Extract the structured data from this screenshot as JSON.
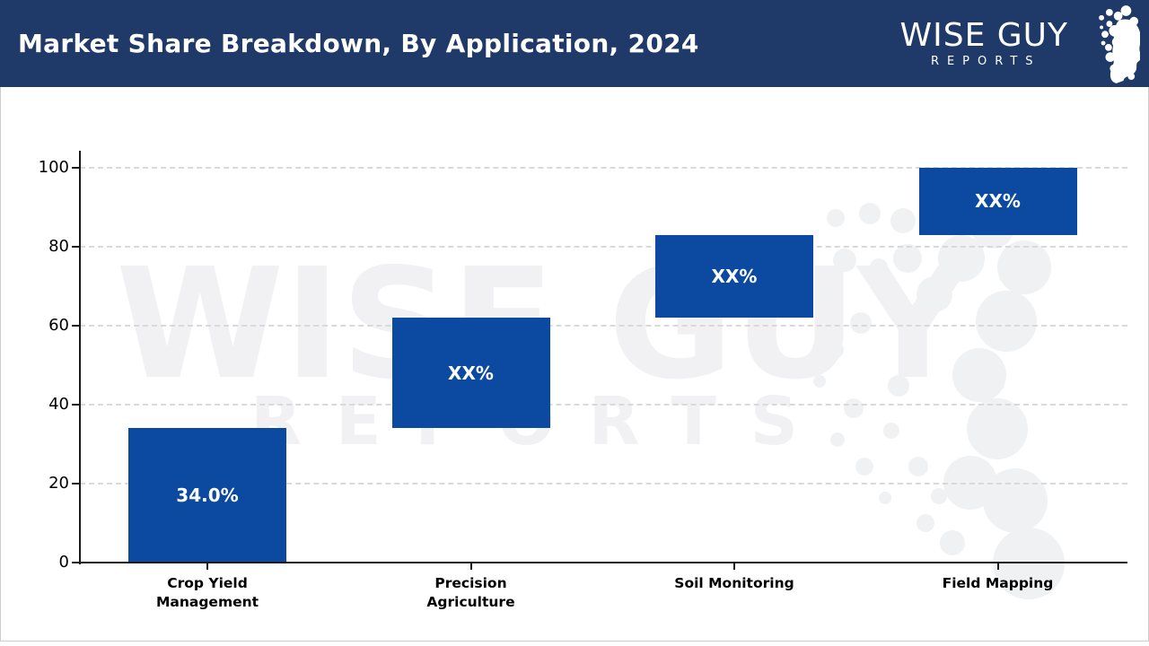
{
  "header": {
    "title": "Market Share Breakdown, By Application, 2024",
    "logo": {
      "line1": "WISE GUY",
      "line2": "REPORTS"
    }
  },
  "watermark": {
    "line1": "WISE GUY",
    "line2": "REPORTS"
  },
  "colors": {
    "header_bg": "#1f3a68",
    "bar": "#0b4aa0",
    "bar_label": "#ffffff",
    "gridline": "#d9d9d9",
    "axis": "#1a1a1a",
    "watermark": "#f1f1f3"
  },
  "chart_data": {
    "type": "bar",
    "subtype": "waterfall",
    "title": "Market Share Breakdown, By Application, 2024",
    "categories": [
      "Crop Yield Management",
      "Precision Agriculture",
      "Soil Monitoring",
      "Field Mapping"
    ],
    "category_lines": [
      [
        "Crop Yield",
        "Management"
      ],
      [
        "Precision",
        "Agriculture"
      ],
      [
        "Soil Monitoring"
      ],
      [
        "Field Mapping"
      ]
    ],
    "segments": [
      {
        "start": 0,
        "end": 34,
        "value": 34,
        "label": "34.0%"
      },
      {
        "start": 34,
        "end": 62,
        "value": 28,
        "label": "XX%"
      },
      {
        "start": 62,
        "end": 83,
        "value": 21,
        "label": "XX%"
      },
      {
        "start": 83,
        "end": 100,
        "value": 17,
        "label": "XX%"
      }
    ],
    "xlabel": "",
    "ylabel": "",
    "ylim": [
      0,
      100
    ],
    "yticks": [
      0,
      20,
      40,
      60,
      80,
      100
    ],
    "grid": "horizontal-dashed",
    "legend": "none"
  }
}
